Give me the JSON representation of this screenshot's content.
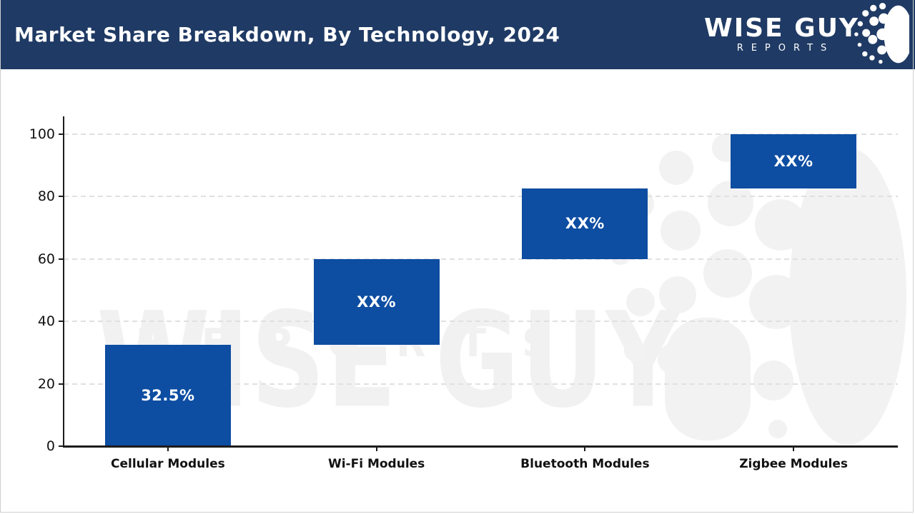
{
  "header": {
    "title": "Market Share Breakdown, By Technology, 2024",
    "bg_color": "#1F3A64",
    "logo": {
      "line1": "WISE GUY",
      "line2": "REPORTS"
    }
  },
  "watermark": {
    "line1": "WISE GUY",
    "line2": "REPORTS"
  },
  "chart_data": {
    "type": "bar",
    "variant": "waterfall-floating-bars",
    "title": "Market Share Breakdown, By Technology, 2024",
    "categories": [
      "Cellular Modules",
      "Wi-Fi Modules",
      "Bluetooth Modules",
      "Zigbee Modules"
    ],
    "segments": [
      {
        "category": "Cellular Modules",
        "start": 0,
        "end": 32.5,
        "label": "32.5%"
      },
      {
        "category": "Wi-Fi Modules",
        "start": 32.5,
        "end": 60,
        "label": "XX%"
      },
      {
        "category": "Bluetooth Modules",
        "start": 60,
        "end": 82.5,
        "label": "XX%"
      },
      {
        "category": "Zigbee Modules",
        "start": 82.5,
        "end": 100,
        "label": "XX%"
      }
    ],
    "xlabel": "",
    "ylabel": "",
    "yticks": [
      0,
      20,
      40,
      60,
      80,
      100
    ],
    "ylim": [
      0,
      105
    ],
    "grid": {
      "horizontal": true,
      "style": "dashed",
      "color": "#e0e0e0"
    },
    "legend": "none",
    "bar_color": "#0D4DA2",
    "bar_label_color": "#ffffff",
    "axis_color": "#1c1c1c"
  }
}
